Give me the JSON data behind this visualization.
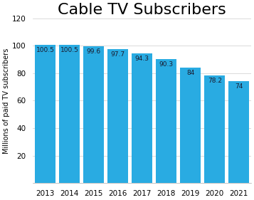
{
  "title": "Cable TV Subscribers",
  "ylabel": "Millions of paid TV subscribers",
  "years": [
    "2013",
    "2014",
    "2015",
    "2016",
    "2017",
    "2018",
    "2019",
    "2020",
    "2021"
  ],
  "values": [
    100.5,
    100.5,
    99.6,
    97.7,
    94.3,
    90.3,
    84,
    78.2,
    74
  ],
  "bar_color": "#29ABE2",
  "label_color": "#1a1a2e",
  "ylim": [
    0,
    120
  ],
  "yticks": [
    20,
    40,
    60,
    80,
    100,
    120
  ],
  "title_fontsize": 16,
  "axis_label_fontsize": 7,
  "bar_label_fontsize": 6.5,
  "tick_fontsize": 7.5,
  "background_color": "#ffffff",
  "grid_color": "#cccccc"
}
